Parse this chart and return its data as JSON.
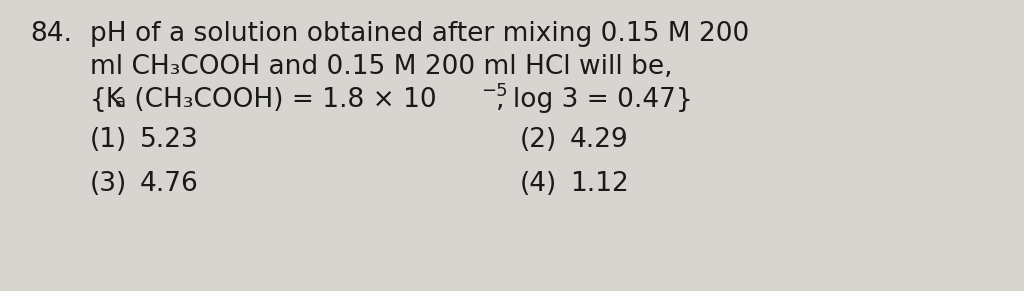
{
  "background_color": "#d8d4d0",
  "text_color": "#1a1a1a",
  "question_number": "84.",
  "line1": "pH of a solution obtained after mixing 0.15 M 200",
  "line2": "ml CH₃COOH and 0.15 M 200 ml HCl will be,",
  "opt1_num": "(1)",
  "opt1_val": "5.23",
  "opt2_num": "(2)",
  "opt2_val": "4.29",
  "opt3_num": "(3)",
  "opt3_val": "4.76",
  "opt4_num": "(4)",
  "opt4_val": "1.12",
  "font_size_main": 19,
  "font_size_options": 19,
  "font_size_sub": 13
}
